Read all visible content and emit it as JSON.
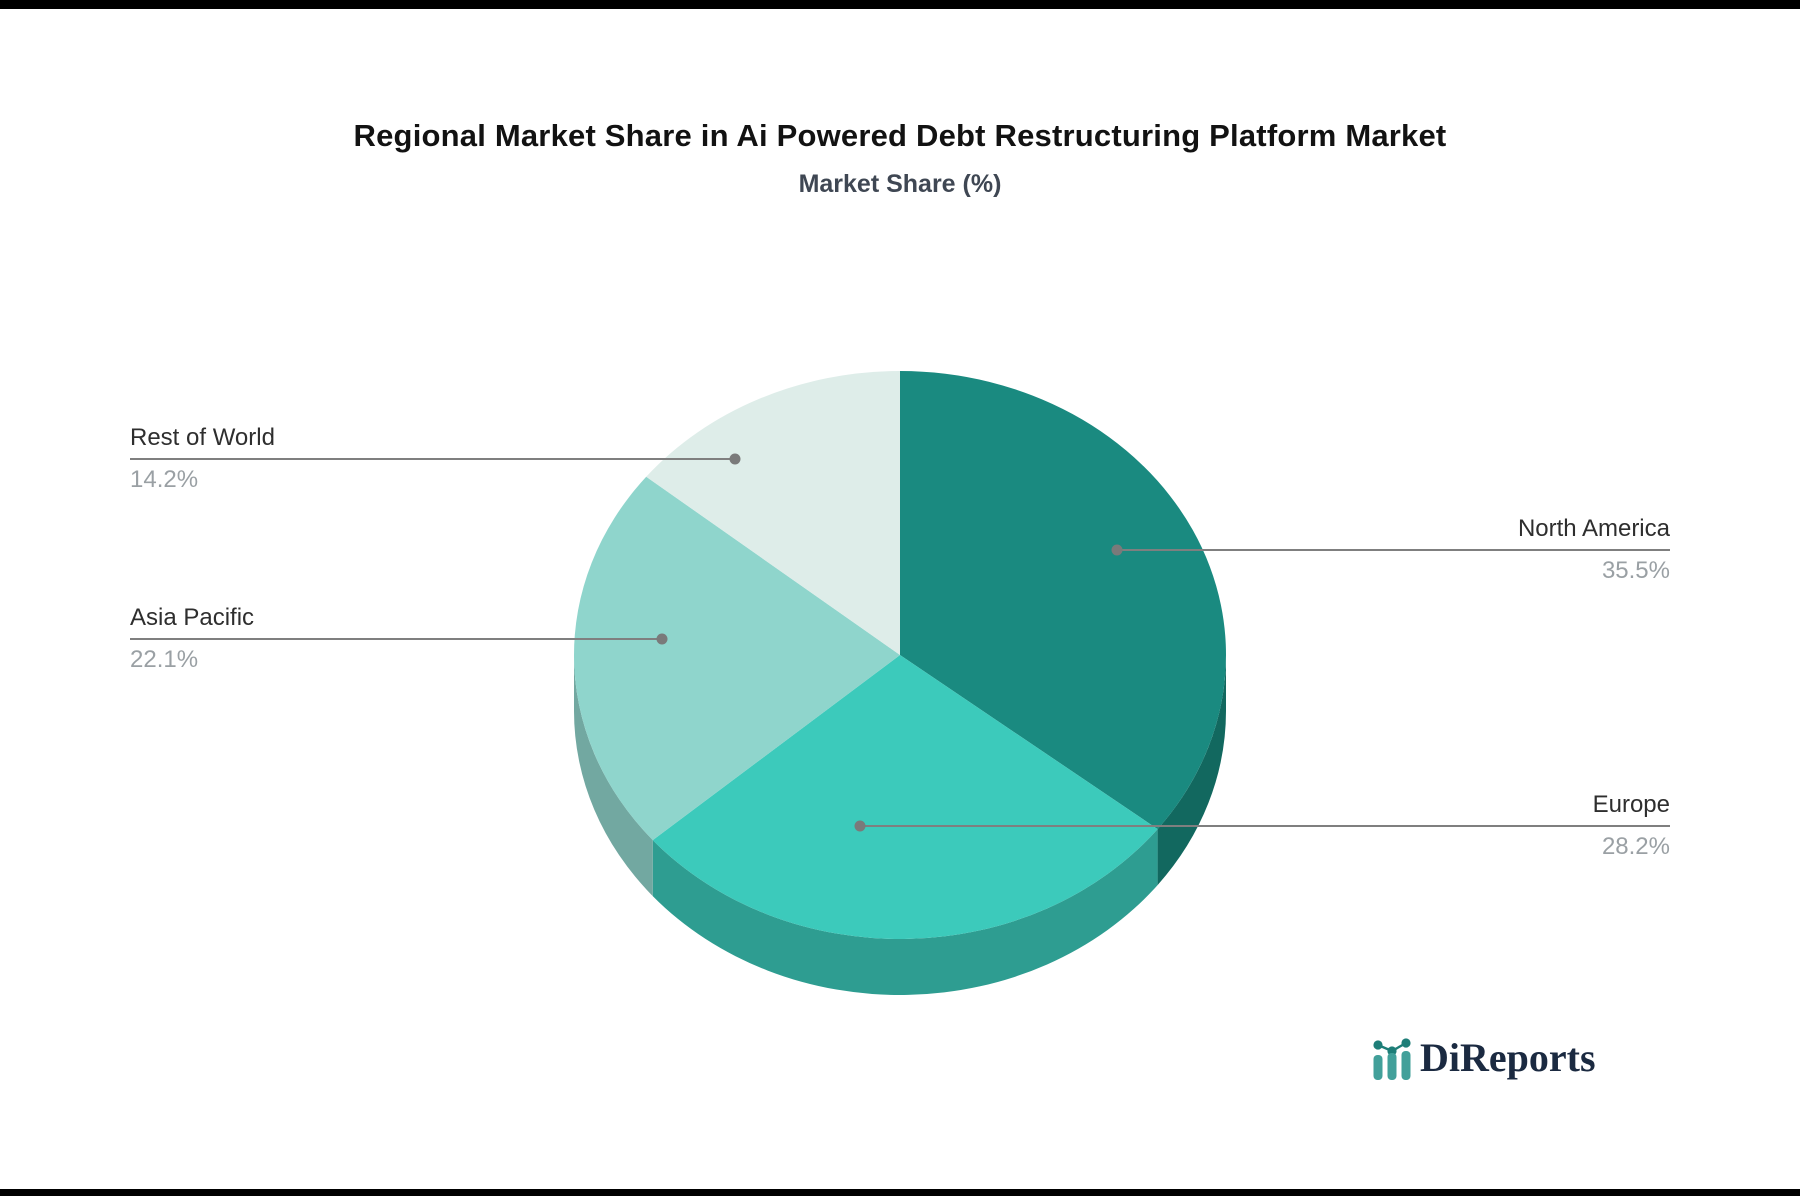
{
  "page": {
    "title": "Regional Market Share in Ai Powered Debt Restructuring Platform Market",
    "subtitle": "Market Share (%)"
  },
  "chart_data": {
    "type": "pie",
    "style": "3d",
    "title": "Regional Market Share in Ai Powered Debt Restructuring Platform Market",
    "subtitle": "Market Share (%)",
    "unit": "%",
    "direction": "clockwise",
    "start_angle_deg": 0,
    "legend_position": "none",
    "labels": [
      "North America",
      "Europe",
      "Asia Pacific",
      "Rest of World"
    ],
    "values": [
      35.5,
      28.2,
      22.1,
      14.2
    ],
    "slices": [
      {
        "label": "North America",
        "value": 35.5,
        "display": "35.5%",
        "color": "#1a8a80",
        "side_color": "#12685f",
        "callout_side": "right"
      },
      {
        "label": "Europe",
        "value": 28.2,
        "display": "28.2%",
        "color": "#3ccabb",
        "side_color": "#2e9d91",
        "callout_side": "right"
      },
      {
        "label": "Asia Pacific",
        "value": 22.1,
        "display": "22.1%",
        "color": "#8fd5cc",
        "side_color": "#72a8a1",
        "callout_side": "left"
      },
      {
        "label": "Rest of World",
        "value": 14.2,
        "display": "14.2%",
        "color": "#deede9",
        "side_color": "#c9ddd8",
        "callout_side": "left"
      }
    ],
    "label_text_color": "#2e2e2e",
    "percent_text_color": "#9aa0a4",
    "line_color": "#7f7f7f"
  },
  "logo": {
    "text": "DiReports",
    "icon": "bar-line-chart-icon",
    "text_color": "#1b2a41",
    "bar_color": "#42a09a",
    "dot_color": "#1e7e78"
  }
}
